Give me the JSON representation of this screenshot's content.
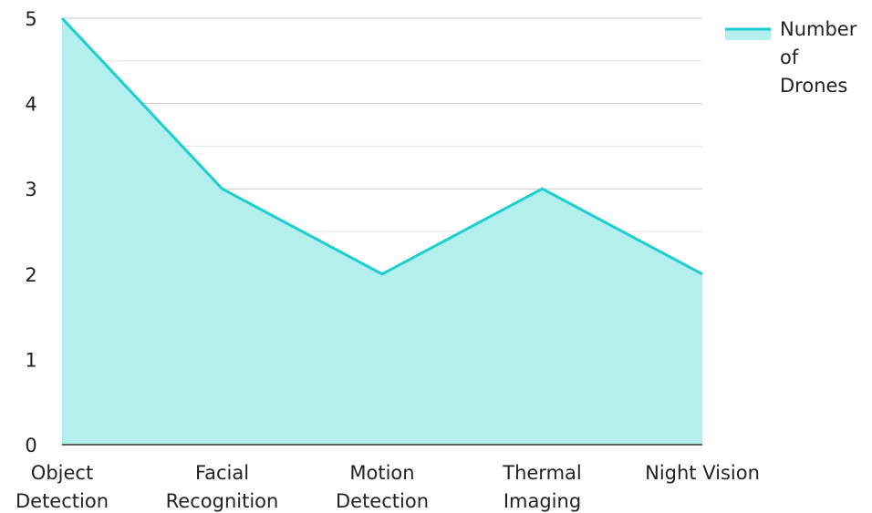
{
  "chart_data": {
    "type": "area",
    "title": "",
    "xlabel": "",
    "ylabel": "",
    "categories": [
      "Object Detection",
      "Facial Recognition",
      "Motion Detection",
      "Thermal Imaging",
      "Night Vision"
    ],
    "series": [
      {
        "name": "Number of Drones",
        "values": [
          5,
          3,
          2,
          3,
          2
        ]
      }
    ],
    "ylim": [
      0,
      5
    ],
    "yticks": [
      0,
      1,
      2,
      3,
      4,
      5
    ],
    "grid": true,
    "legend_position": "top-right",
    "colors": {
      "line": "#1ccfcf",
      "fill": "#b2efed",
      "grid_major": "#c8c8c8",
      "grid_minor": "#e6e6e6",
      "axis": "#333333"
    }
  }
}
